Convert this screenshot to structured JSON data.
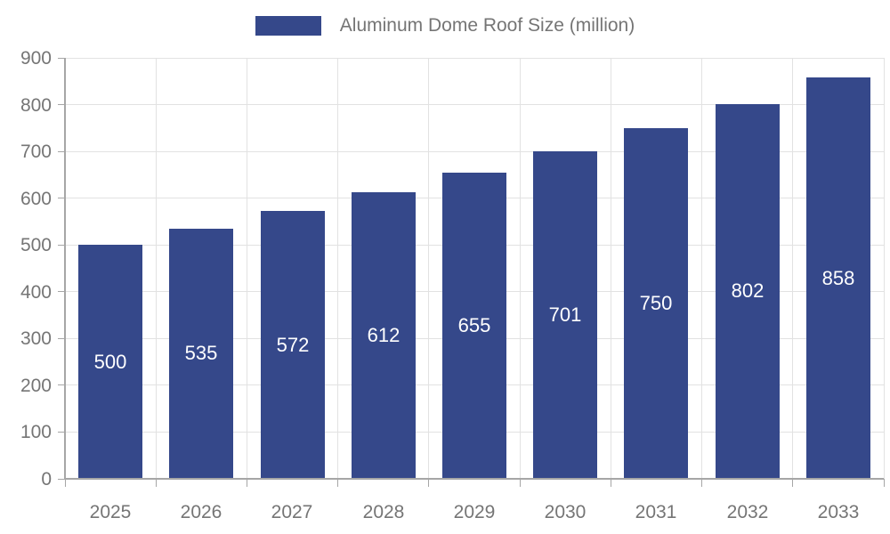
{
  "legend": {
    "label": "Aluminum Dome Roof Size (million)"
  },
  "colors": {
    "bar": "#35488a",
    "grid": "#e2e2e2",
    "axis": "#a6a6a6",
    "tick_text": "#757575",
    "value_label": "#ffffff"
  },
  "chart_data": {
    "type": "bar",
    "title": "Aluminum Dome Roof Size (million)",
    "categories": [
      "2025",
      "2026",
      "2027",
      "2028",
      "2029",
      "2030",
      "2031",
      "2032",
      "2033"
    ],
    "values": [
      500,
      535,
      572,
      612,
      655,
      701,
      750,
      802,
      858
    ],
    "xlabel": "",
    "ylabel": "",
    "ylim": [
      0,
      900
    ],
    "ytick_interval": 100,
    "yticks": [
      0,
      100,
      200,
      300,
      400,
      500,
      600,
      700,
      800,
      900
    ],
    "grid": true,
    "legend_position": "top",
    "bar_label_position": "center"
  }
}
